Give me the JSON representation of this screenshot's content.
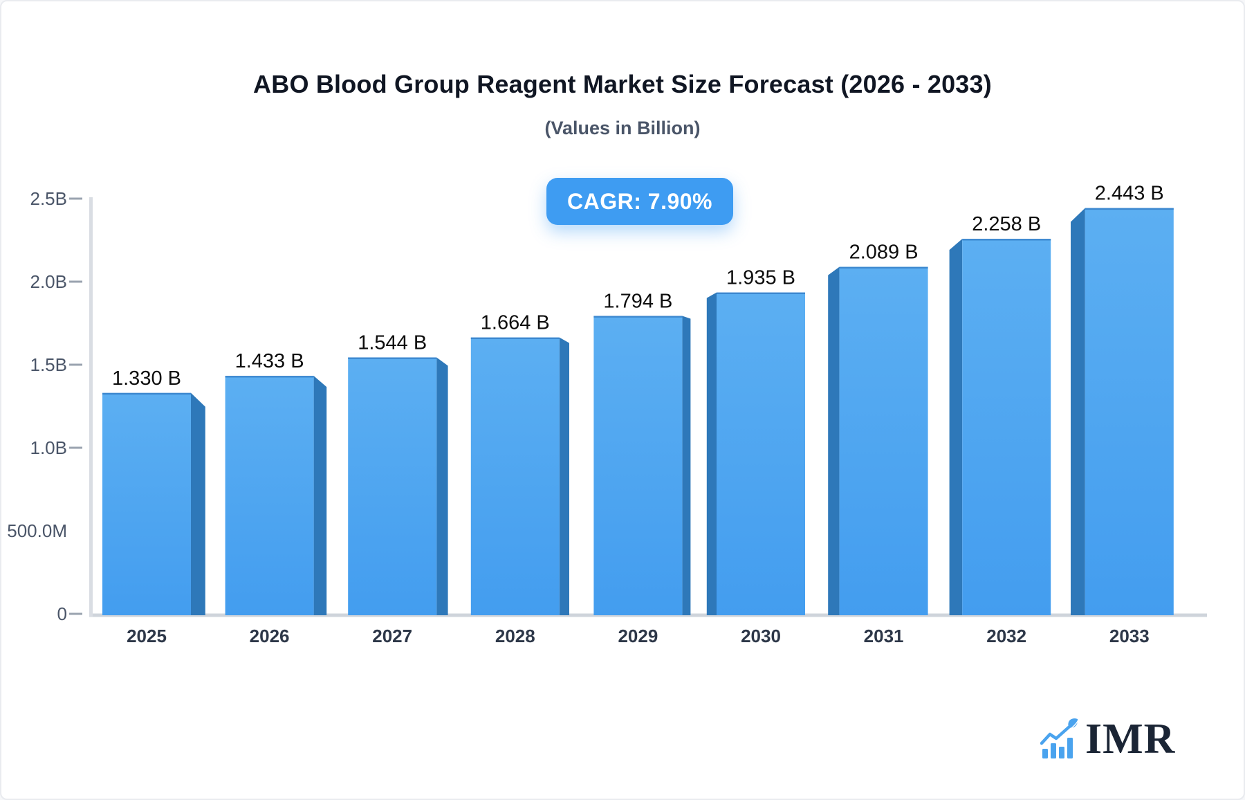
{
  "header": {
    "title": "ABO Blood Group Reagent Market Size Forecast (2026 - 2033)",
    "subtitle": "(Values in Billion)"
  },
  "cagr_badge": {
    "label": "CAGR: 7.90%",
    "color": "#3E9CF2"
  },
  "logo": {
    "brand": "IMR",
    "icon": "bar-chart-growth-leaf-icon",
    "text_color": "#1B2535",
    "icon_color": "#4AA3EE"
  },
  "colors": {
    "bar_face_top": "#5CAFF2",
    "bar_face_bottom": "#439DEF",
    "bar_face_top_edge": "#3D88CF",
    "bar_side": "#2E78B9",
    "axis_line": "#D9DDE3",
    "baseline": "#CFD4DB",
    "tick_dash": "#9AA3AF",
    "tick_text": "#4A5568",
    "year_text": "#2D3748",
    "value_text": "#0D0D0D"
  },
  "chart_data": {
    "type": "bar",
    "title": "ABO Blood Group Reagent Market Size Forecast (2026 - 2033)",
    "subtitle": "(Values in Billion)",
    "annotation": "CAGR: 7.90%",
    "categories": [
      "2025",
      "2026",
      "2027",
      "2028",
      "2029",
      "2030",
      "2031",
      "2032",
      "2033"
    ],
    "values_billions": [
      1.33,
      1.433,
      1.544,
      1.664,
      1.794,
      1.935,
      2.089,
      2.258,
      2.443
    ],
    "value_labels": [
      "1.330 B",
      "1.433 B",
      "1.544 B",
      "1.664 B",
      "1.794 B",
      "1.935 B",
      "2.089 B",
      "2.258 B",
      "2.443 B"
    ],
    "xlabel": "",
    "ylabel": "",
    "ylim": [
      0,
      2.5
    ],
    "y_ticks": [
      {
        "label": "2.5B",
        "value": 2.5,
        "dash": true
      },
      {
        "label": "2.0B",
        "value": 2.0,
        "dash": true
      },
      {
        "label": "1.5B",
        "value": 1.5,
        "dash": true
      },
      {
        "label": "1.0B",
        "value": 1.0,
        "dash": true
      },
      {
        "label": "500.0M",
        "value": 0.5,
        "dash": false
      },
      {
        "label": "0",
        "value": 0.0,
        "dash": true
      }
    ],
    "grid": false,
    "legend": false,
    "bar_style": "pseudo-3d, side face toward chart center"
  }
}
